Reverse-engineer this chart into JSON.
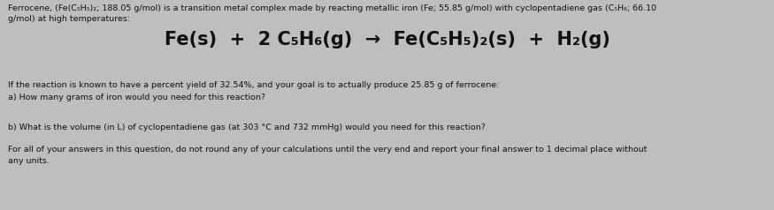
{
  "background_color": "#bebebe",
  "text_color": "#111111",
  "small_fontsize": 6.8,
  "eq_fontsize": 15.0,
  "line1": "Ferrocene, (Fe(C₅H₅)₂; 188.05 g/mol) is a transition metal complex made by reacting metallic iron (Fe; 55.85 g/mol) with cyclopentadiene gas (C₅H₆; 66.10",
  "line2": "g/mol) at high temperatures:",
  "equation": "Fe(s)  +  2 C₅H₆(g)  →  Fe(C₅H₅)₂(s)  +  H₂(g)",
  "line3": "If the reaction is known to have a percent yield of 32.54%, and your goal is to actually produce 25.85 g of ferrocene:",
  "line4": "a) How many grams of iron would you need for this reaction?",
  "line5": "b) What is the volume (in L) of cyclopentadiene gas (at 303 °C and 732 mmHg) would you need for this reaction?",
  "line6": "For all of your answers in this question, do not round any of your calculations until the very end and report your final answer to 1 decimal place without",
  "line7": "any units.",
  "fig_width": 8.75,
  "fig_height": 2.38,
  "dpi": 100
}
